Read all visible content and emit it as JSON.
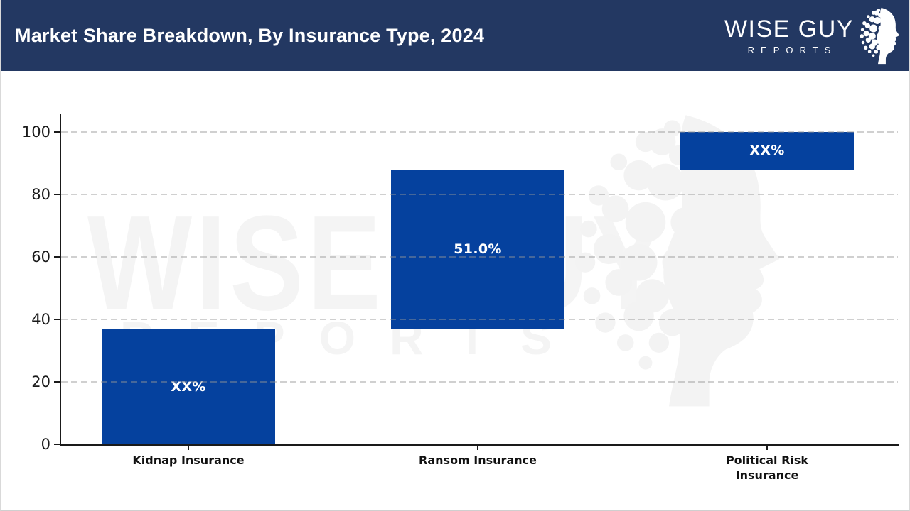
{
  "header": {
    "title": "Market Share Breakdown, By Insurance Type, 2024",
    "logo": {
      "line1": "WISE GUY",
      "line2": "REPORTS"
    }
  },
  "watermark": {
    "line1": "WISE GUY",
    "line2": "REPORTS"
  },
  "chart_data": {
    "type": "bar",
    "subtype": "stacked-waterfall-segments",
    "title": "Market Share Breakdown, By Insurance Type, 2024",
    "categories": [
      "Kidnap Insurance",
      "Ransom Insurance",
      "Political Risk Insurance"
    ],
    "segments": [
      {
        "category": "Kidnap Insurance",
        "start": 0,
        "end": 37,
        "label": "XX%"
      },
      {
        "category": "Ransom Insurance",
        "start": 37,
        "end": 88,
        "label": "51.0%"
      },
      {
        "category": "Political Risk Insurance",
        "start": 88,
        "end": 100,
        "label": "XX%"
      }
    ],
    "yticks": [
      0,
      20,
      40,
      60,
      80,
      100
    ],
    "ylim": [
      0,
      106
    ],
    "xlabel": "",
    "ylabel": "",
    "bar_color": "#05419e",
    "grid": "dashed horizontal, light gray",
    "legend": "none",
    "background": "#ffffff",
    "header_color": "#233862"
  }
}
